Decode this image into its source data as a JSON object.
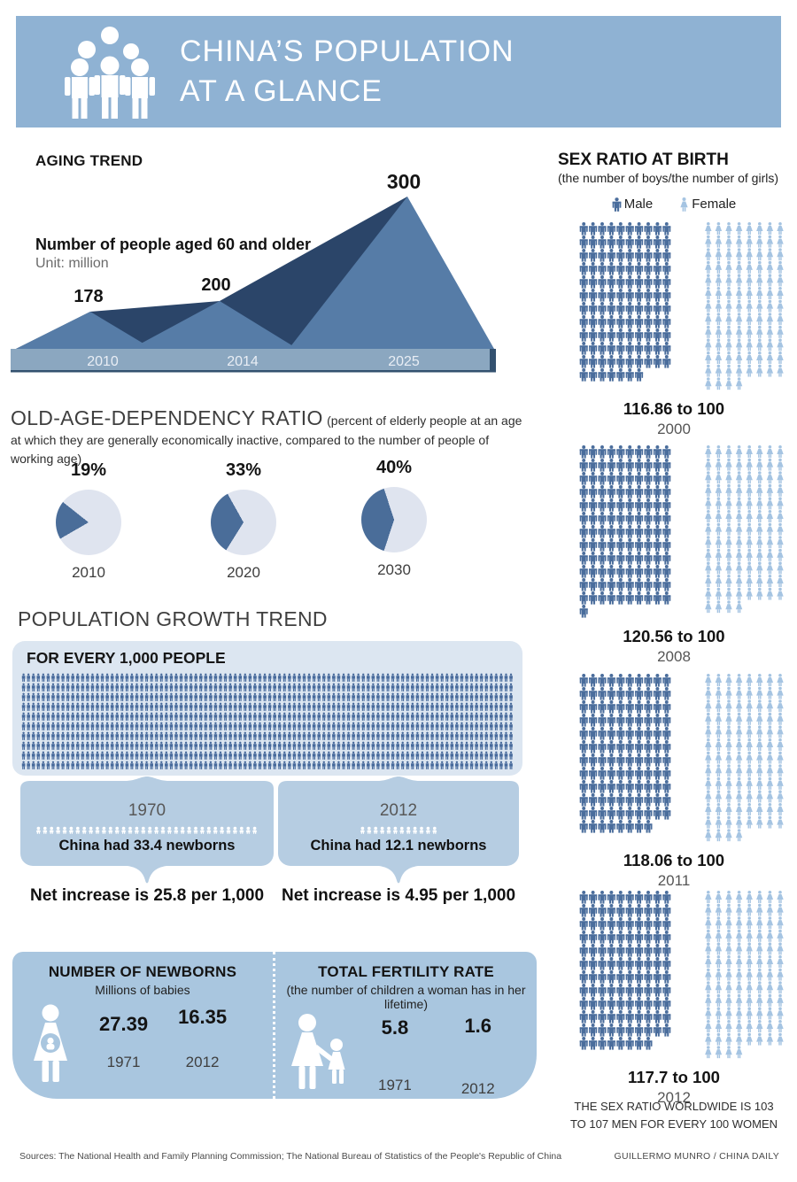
{
  "header": {
    "title_line1": "CHINA’S POPULATION",
    "title_line2": "AT A GLANCE"
  },
  "aging_trend": {
    "title": "AGING TREND",
    "note_bold": "Number of people aged 60 and older",
    "note_unit": "Unit: million",
    "points": [
      {
        "year": "2010",
        "value_label": "178",
        "value": 178
      },
      {
        "year": "2014",
        "value_label": "200",
        "value": 200
      },
      {
        "year": "2025",
        "value_label": "300",
        "value": 300
      }
    ]
  },
  "dependency": {
    "title": "OLD-AGE-DEPENDENCY RATIO",
    "description": "(percent of elderly people at an age at which they are generally economically inactive, compared to the number of people of working age)",
    "pies": [
      {
        "pct": "19%",
        "value": 19,
        "year": "2010"
      },
      {
        "pct": "33%",
        "value": 33,
        "year": "2020"
      },
      {
        "pct": "40%",
        "value": 40,
        "year": "2030"
      }
    ]
  },
  "growth": {
    "title": "POPULATION GROWTH TREND",
    "grid_label": "FOR EVERY 1,000 PEOPLE",
    "grid_total": 1000,
    "panels": [
      {
        "year": "1970",
        "newborn_icons": 34,
        "text": "China had 33.4 newborns",
        "net": "Net increase is 25.8 per 1,000"
      },
      {
        "year": "2012",
        "newborn_icons": 12,
        "text": "China had 12.1 newborns",
        "net": "Net increase is 4.95 per 1,000"
      }
    ]
  },
  "sex_ratio": {
    "title": "SEX RATIO AT BIRTH",
    "subtitle": "(the number of boys/the number of girls)",
    "legend": {
      "male": "Male",
      "female": "Female"
    },
    "blocks": [
      {
        "ratio": "116.86 to 100",
        "year": "2000",
        "male_count": 117,
        "female_count": 100
      },
      {
        "ratio": "120.56 to 100",
        "year": "2008",
        "male_count": 121,
        "female_count": 100
      },
      {
        "ratio": "118.06 to 100",
        "year": "2011",
        "male_count": 118,
        "female_count": 100
      },
      {
        "ratio": "117.7 to 100",
        "year": "2012",
        "male_count": 118,
        "female_count": 100
      }
    ],
    "note_line1": "THE SEX RATIO WORLDWIDE IS 103",
    "note_line2": "TO 107 MEN FOR EVERY 100 WOMEN"
  },
  "newborns_box": {
    "title": "NUMBER OF NEWBORNS",
    "subtitle": "Millions of babies",
    "entries": [
      {
        "value": "27.39",
        "year": "1971"
      },
      {
        "value": "16.35",
        "year": "2012"
      }
    ]
  },
  "fertility_box": {
    "title": "TOTAL FERTILITY RATE",
    "subtitle": "(the number of children a woman has in her lifetime)",
    "entries": [
      {
        "value": "5.8",
        "year": "1971"
      },
      {
        "value": "1.6",
        "year": "2012"
      }
    ]
  },
  "footer": {
    "sources": "Sources: The National Health and Family Planning Commission; The National Bureau of Statistics of the People's Republic of China",
    "credit": "GUILLERMO MUNRO / CHINA DAILY"
  },
  "colors": {
    "banner": "#8FB2D3",
    "dark_navy": "#2B4569",
    "mid_blue": "#567CA7",
    "axis_bar": "#8BA7C0",
    "axis_edge": "#33516F",
    "pie_wedge": "#4A6D99",
    "pie_rest": "#DFE4EF",
    "male": "#4A6D9C",
    "female": "#A5C4E2",
    "panel_light": "#DCE6F1",
    "panel_mid": "#B6CDE2",
    "box_blue": "#A9C6DF",
    "crowd": "#46699B"
  },
  "chart_data": [
    {
      "type": "area",
      "title": "AGING TREND",
      "subtitle": "Number of people aged 60 and older",
      "unit": "million",
      "categories": [
        "2010",
        "2014",
        "2025"
      ],
      "values": [
        178,
        200,
        300
      ]
    },
    {
      "type": "pie",
      "title": "OLD-AGE-DEPENDENCY RATIO",
      "categories": [
        "2010",
        "2020",
        "2030"
      ],
      "values_percent": [
        19,
        33,
        40
      ]
    },
    {
      "type": "pictogram",
      "title": "POPULATION GROWTH TREND",
      "basis": "FOR EVERY 1,000 PEOPLE",
      "series": [
        {
          "year": "1970",
          "newborns_per_1000": 33.4,
          "net_increase_per_1000": 25.8
        },
        {
          "year": "2012",
          "newborns_per_1000": 12.1,
          "net_increase_per_1000": 4.95
        }
      ]
    },
    {
      "type": "pictogram",
      "title": "SEX RATIO AT BIRTH",
      "categories": [
        "2000",
        "2008",
        "2011",
        "2012"
      ],
      "series": [
        {
          "name": "Male",
          "values": [
            116.86,
            120.56,
            118.06,
            117.7
          ]
        },
        {
          "name": "Female",
          "values": [
            100,
            100,
            100,
            100
          ]
        }
      ],
      "note": "THE SEX RATIO WORLDWIDE IS 103 TO 107 MEN FOR EVERY 100 WOMEN"
    },
    {
      "type": "table",
      "title": "NUMBER OF NEWBORNS",
      "unit": "Millions of babies",
      "categories": [
        "1971",
        "2012"
      ],
      "values": [
        27.39,
        16.35
      ]
    },
    {
      "type": "table",
      "title": "TOTAL FERTILITY RATE",
      "categories": [
        "1971",
        "2012"
      ],
      "values": [
        5.8,
        1.6
      ]
    }
  ]
}
